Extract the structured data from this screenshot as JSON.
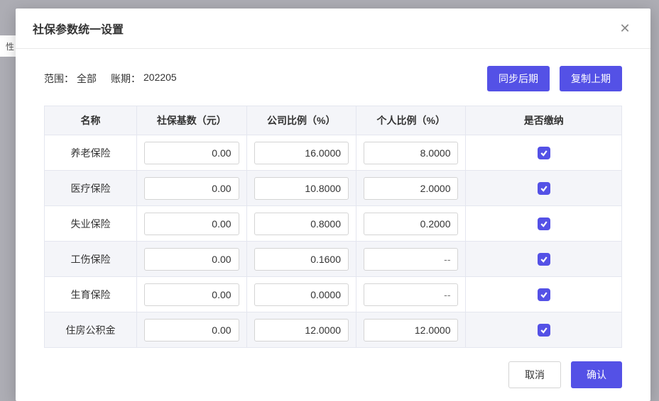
{
  "sidebar_hint": "性",
  "modal": {
    "title": "社保参数统一设置",
    "close_symbol": "✕"
  },
  "info": {
    "scope_label": "范围：",
    "scope_value": "全部",
    "period_label": "账期：",
    "period_value": "202205"
  },
  "actions": {
    "sync_next": "同步后期",
    "copy_prev": "复制上期"
  },
  "columns": {
    "name": "名称",
    "base": "社保基数（元）",
    "company": "公司比例（%）",
    "personal": "个人比例（%）",
    "pay": "是否缴纳"
  },
  "rows": [
    {
      "name": "养老保险",
      "base": "0.00",
      "company": "16.0000",
      "personal": "8.0000",
      "personal_placeholder": "",
      "pay": true
    },
    {
      "name": "医疗保险",
      "base": "0.00",
      "company": "10.8000",
      "personal": "2.0000",
      "personal_placeholder": "",
      "pay": true
    },
    {
      "name": "失业保险",
      "base": "0.00",
      "company": "0.8000",
      "personal": "0.2000",
      "personal_placeholder": "",
      "pay": true
    },
    {
      "name": "工伤保险",
      "base": "0.00",
      "company": "0.1600",
      "personal": "",
      "personal_placeholder": "--",
      "pay": true
    },
    {
      "name": "生育保险",
      "base": "0.00",
      "company": "0.0000",
      "personal": "",
      "personal_placeholder": "--",
      "pay": true
    },
    {
      "name": "住房公积金",
      "base": "0.00",
      "company": "12.0000",
      "personal": "12.0000",
      "personal_placeholder": "",
      "pay": true
    }
  ],
  "footer": {
    "cancel": "取消",
    "confirm": "确认"
  },
  "colors": {
    "primary": "#5451e6",
    "border": "#e4e6ef",
    "header_bg": "#f4f5f9"
  }
}
